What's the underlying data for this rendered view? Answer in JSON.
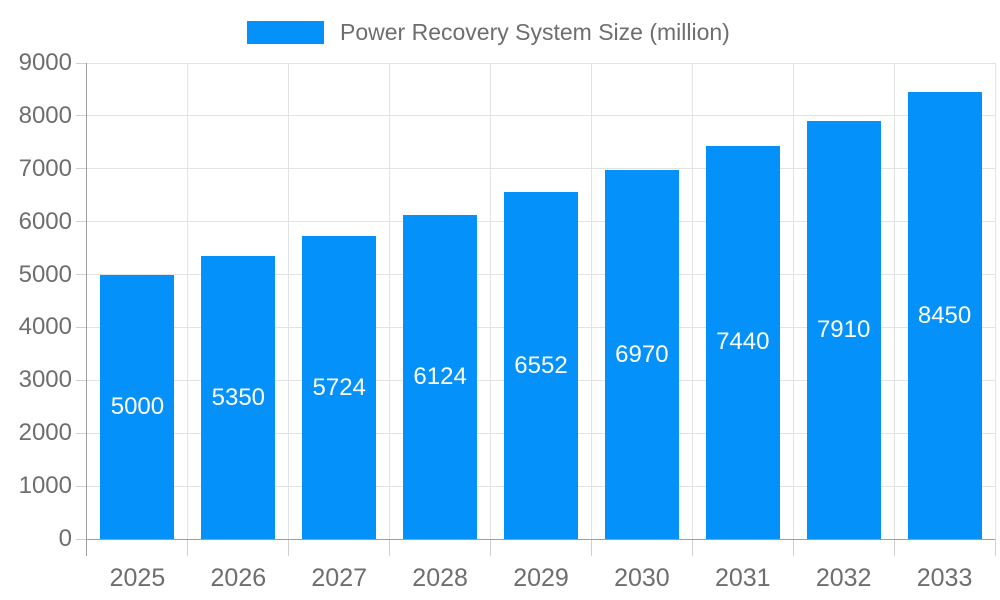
{
  "legend": {
    "label": "Power Recovery System Size (million)",
    "position": "top"
  },
  "colors": {
    "bar": "#0591fa",
    "axis_line": "#9e9e9e",
    "gridline": "#e3e3e3",
    "tick": "#cfcfcf",
    "tick_label": "#6e6e6e",
    "value_label": "#ffffff",
    "background": "#ffffff"
  },
  "chart_data": {
    "type": "bar",
    "title": "",
    "legend_entries": [
      "Power Recovery System Size (million)"
    ],
    "legend_position": "top",
    "categories": [
      "2025",
      "2026",
      "2027",
      "2028",
      "2029",
      "2030",
      "2031",
      "2032",
      "2033"
    ],
    "series": [
      {
        "name": "Power Recovery System Size (million)",
        "values": [
          5000,
          5350,
          5724,
          6124,
          6552,
          6970,
          7440,
          7910,
          8450
        ]
      }
    ],
    "value_labels_shown": true,
    "value_label_position": "inside-center",
    "xlabel": "",
    "ylabel": "",
    "ylim": [
      0,
      9000
    ],
    "ytick_step": 1000,
    "yticks": [
      0,
      1000,
      2000,
      3000,
      4000,
      5000,
      6000,
      7000,
      8000,
      9000
    ],
    "grid": true
  }
}
